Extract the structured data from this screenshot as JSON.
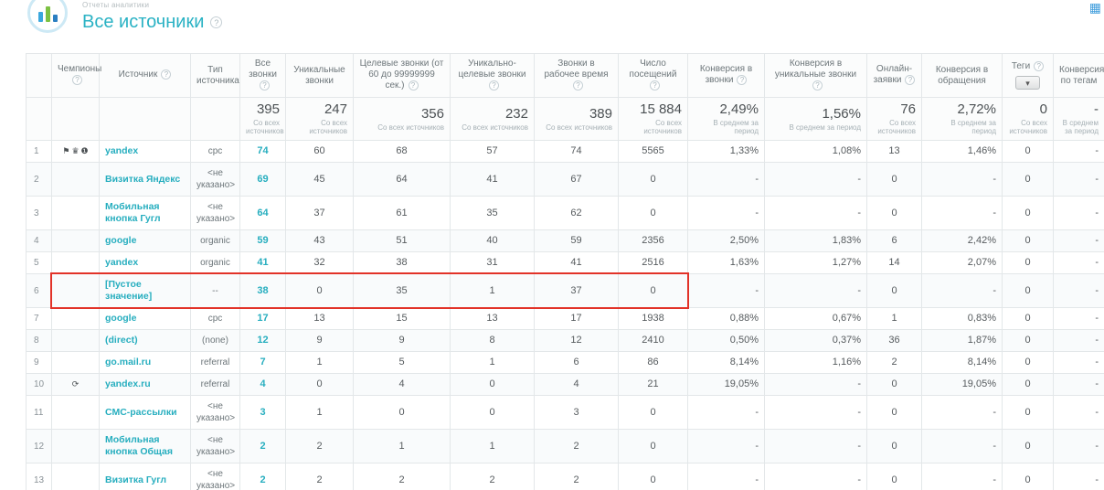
{
  "page": {
    "breadcrumb": "Отчеты аналитики",
    "title": "Все источники"
  },
  "table": {
    "highlight_color": "#e23228",
    "accent_color": "#27aebf",
    "columns": [
      {
        "key": "num",
        "label": "",
        "help": false
      },
      {
        "key": "champions",
        "label": "Чемпионы",
        "help": true
      },
      {
        "key": "source",
        "label": "Источник",
        "help": true
      },
      {
        "key": "type",
        "label": "Тип источника",
        "help": false
      },
      {
        "key": "calls",
        "label": "Все звонки",
        "help": true,
        "total": "395",
        "caption": "Со всех источников"
      },
      {
        "key": "unique_calls",
        "label": "Уникальные звонки",
        "help": false,
        "total": "247",
        "caption": "Со всех источников"
      },
      {
        "key": "target_calls",
        "label": "Целевые звонки (от 60 до 99999999 сек.)",
        "help": true,
        "total": "356",
        "caption": "Со всех источников"
      },
      {
        "key": "unique_target_calls",
        "label": "Уникально-целевые звонки",
        "help": true,
        "total": "232",
        "caption": "Со всех источников"
      },
      {
        "key": "work_time_calls",
        "label": "Звонки в рабочее время",
        "help": true,
        "total": "389",
        "caption": "Со всех источников"
      },
      {
        "key": "visits",
        "label": "Число посещений",
        "help": true,
        "total": "15 884",
        "caption": "Со всех источников"
      },
      {
        "key": "conv_calls",
        "label": "Конверсия в звонки",
        "help": true,
        "total": "2,49%",
        "caption": "В среднем за период"
      },
      {
        "key": "conv_unique_calls",
        "label": "Конверсия в уникальные звонки",
        "help": true,
        "total": "1,56%",
        "caption": "В среднем за период"
      },
      {
        "key": "online_leads",
        "label": "Онлайн-заявки",
        "help": true,
        "total": "76",
        "caption": "Со всех источников"
      },
      {
        "key": "conv_leads",
        "label": "Конверсия в обращения",
        "help": false,
        "total": "2,72%",
        "caption": "В среднем за период"
      },
      {
        "key": "tags",
        "label": "Теги",
        "help": true,
        "dropdown": true,
        "total": "0",
        "caption": "Со всех источников"
      },
      {
        "key": "conv_tags",
        "label": "Конверсия по тегам",
        "help": false,
        "total": "-",
        "caption": "В среднем за период"
      }
    ],
    "rows": [
      {
        "num": "1",
        "champions": [
          {
            "icon": "flag-icon",
            "glyph": "⚑"
          },
          {
            "icon": "crown-icon",
            "glyph": "♛"
          },
          {
            "icon": "badge-one-icon",
            "glyph": "❶"
          }
        ],
        "source": "yandex",
        "type": "cpc",
        "calls": "74",
        "unique_calls": "60",
        "target_calls": "68",
        "unique_target_calls": "57",
        "work_time_calls": "74",
        "visits": "5565",
        "conv_calls": "1,33%",
        "conv_unique_calls": "1,08%",
        "online_leads": "13",
        "conv_leads": "1,46%",
        "tags": "0",
        "conv_tags": "-",
        "highlight": false
      },
      {
        "num": "2",
        "champions": [],
        "source": "Визитка Яндекс",
        "type": "<не указано>",
        "calls": "69",
        "unique_calls": "45",
        "target_calls": "64",
        "unique_target_calls": "41",
        "work_time_calls": "67",
        "visits": "0",
        "conv_calls": "-",
        "conv_unique_calls": "-",
        "online_leads": "0",
        "conv_leads": "-",
        "tags": "0",
        "conv_tags": "-",
        "highlight": false
      },
      {
        "num": "3",
        "champions": [],
        "source": "Мобильная кнопка Гугл",
        "type": "<не указано>",
        "calls": "64",
        "unique_calls": "37",
        "target_calls": "61",
        "unique_target_calls": "35",
        "work_time_calls": "62",
        "visits": "0",
        "conv_calls": "-",
        "conv_unique_calls": "-",
        "online_leads": "0",
        "conv_leads": "-",
        "tags": "0",
        "conv_tags": "-",
        "highlight": false
      },
      {
        "num": "4",
        "champions": [],
        "source": "google",
        "type": "organic",
        "calls": "59",
        "unique_calls": "43",
        "target_calls": "51",
        "unique_target_calls": "40",
        "work_time_calls": "59",
        "visits": "2356",
        "conv_calls": "2,50%",
        "conv_unique_calls": "1,83%",
        "online_leads": "6",
        "conv_leads": "2,42%",
        "tags": "0",
        "conv_tags": "-",
        "highlight": false
      },
      {
        "num": "5",
        "champions": [],
        "source": "yandex",
        "type": "organic",
        "calls": "41",
        "unique_calls": "32",
        "target_calls": "38",
        "unique_target_calls": "31",
        "work_time_calls": "41",
        "visits": "2516",
        "conv_calls": "1,63%",
        "conv_unique_calls": "1,27%",
        "online_leads": "14",
        "conv_leads": "2,07%",
        "tags": "0",
        "conv_tags": "-",
        "highlight": false
      },
      {
        "num": "6",
        "champions": [],
        "source": "[Пустое значение]",
        "type": "--",
        "calls": "38",
        "unique_calls": "0",
        "target_calls": "35",
        "unique_target_calls": "1",
        "work_time_calls": "37",
        "visits": "0",
        "conv_calls": "-",
        "conv_unique_calls": "-",
        "online_leads": "0",
        "conv_leads": "-",
        "tags": "0",
        "conv_tags": "-",
        "highlight": true
      },
      {
        "num": "7",
        "champions": [],
        "source": "google",
        "type": "cpc",
        "calls": "17",
        "unique_calls": "13",
        "target_calls": "15",
        "unique_target_calls": "13",
        "work_time_calls": "17",
        "visits": "1938",
        "conv_calls": "0,88%",
        "conv_unique_calls": "0,67%",
        "online_leads": "1",
        "conv_leads": "0,83%",
        "tags": "0",
        "conv_tags": "-",
        "highlight": false
      },
      {
        "num": "8",
        "champions": [],
        "source": "(direct)",
        "type": "(none)",
        "calls": "12",
        "unique_calls": "9",
        "target_calls": "9",
        "unique_target_calls": "8",
        "work_time_calls": "12",
        "visits": "2410",
        "conv_calls": "0,50%",
        "conv_unique_calls": "0,37%",
        "online_leads": "36",
        "conv_leads": "1,87%",
        "tags": "0",
        "conv_tags": "-",
        "highlight": false
      },
      {
        "num": "9",
        "champions": [],
        "source": "go.mail.ru",
        "type": "referral",
        "calls": "7",
        "unique_calls": "1",
        "target_calls": "5",
        "unique_target_calls": "1",
        "work_time_calls": "6",
        "visits": "86",
        "conv_calls": "8,14%",
        "conv_unique_calls": "1,16%",
        "online_leads": "2",
        "conv_leads": "8,14%",
        "tags": "0",
        "conv_tags": "-",
        "highlight": false
      },
      {
        "num": "10",
        "champions": [
          {
            "icon": "refresh-icon",
            "glyph": "⟳"
          }
        ],
        "source": "yandex.ru",
        "type": "referral",
        "calls": "4",
        "unique_calls": "0",
        "target_calls": "4",
        "unique_target_calls": "0",
        "work_time_calls": "4",
        "visits": "21",
        "conv_calls": "19,05%",
        "conv_unique_calls": "-",
        "online_leads": "0",
        "conv_leads": "19,05%",
        "tags": "0",
        "conv_tags": "-",
        "highlight": false
      },
      {
        "num": "11",
        "champions": [],
        "source": "СМС-рассылки",
        "type": "<не указано>",
        "calls": "3",
        "unique_calls": "1",
        "target_calls": "0",
        "unique_target_calls": "0",
        "work_time_calls": "3",
        "visits": "0",
        "conv_calls": "-",
        "conv_unique_calls": "-",
        "online_leads": "0",
        "conv_leads": "-",
        "tags": "0",
        "conv_tags": "-",
        "highlight": false
      },
      {
        "num": "12",
        "champions": [],
        "source": "Мобильная кнопка Общая",
        "type": "<не указано>",
        "calls": "2",
        "unique_calls": "2",
        "target_calls": "1",
        "unique_target_calls": "1",
        "work_time_calls": "2",
        "visits": "0",
        "conv_calls": "-",
        "conv_unique_calls": "-",
        "online_leads": "0",
        "conv_leads": "-",
        "tags": "0",
        "conv_tags": "-",
        "highlight": false
      },
      {
        "num": "13",
        "champions": [],
        "source": "Визитка Гугл",
        "type": "<не указано>",
        "calls": "2",
        "unique_calls": "2",
        "target_calls": "2",
        "unique_target_calls": "2",
        "work_time_calls": "2",
        "visits": "0",
        "conv_calls": "-",
        "conv_unique_calls": "-",
        "online_leads": "0",
        "conv_leads": "-",
        "tags": "0",
        "conv_tags": "-",
        "highlight": false
      }
    ]
  }
}
